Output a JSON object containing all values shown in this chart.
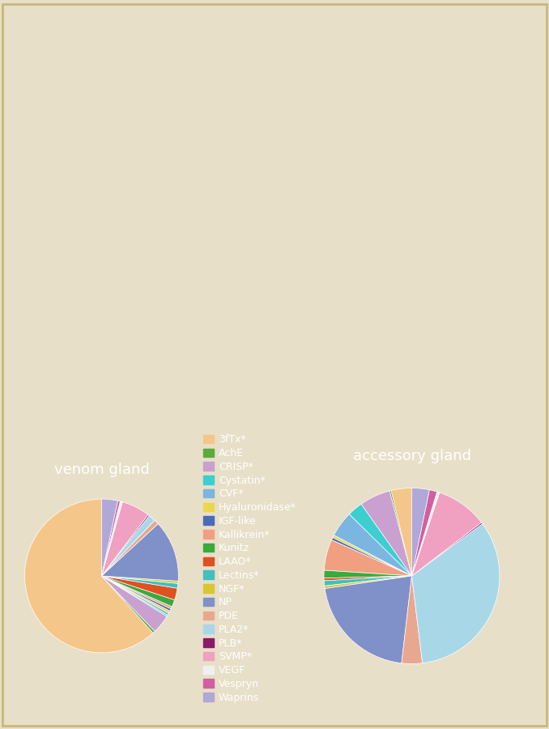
{
  "background_color": "#595959",
  "outer_background": "#e8dfc8",
  "labels": [
    "3fTx*",
    "AchE",
    "CRISP*",
    "Cystatin*",
    "CVF*",
    "Hyaluronidase*",
    "IGF-like",
    "Kallikrein*",
    "Kunitz",
    "LAAO*",
    "Lectins*",
    "NGF*",
    "NP",
    "PDE",
    "PLA2*",
    "PLB*",
    "SVMP*",
    "VEGF",
    "Vespryn",
    "Waprins"
  ],
  "colors": [
    "#f5c68a",
    "#5aaa3c",
    "#c9a0d0",
    "#3dcecf",
    "#7ab6e0",
    "#e8d84a",
    "#4a6cb8",
    "#f0a080",
    "#3aaa3c",
    "#e05020",
    "#40c0c0",
    "#d8c830",
    "#8090c8",
    "#e8a890",
    "#a8d8e8",
    "#8b1a6b",
    "#f0a0c0",
    "#f0f0f0",
    "#d060a0",
    "#b0a8d8"
  ],
  "venom_gland_values": [
    62,
    0.5,
    4,
    0.3,
    0.5,
    0.5,
    0.5,
    0.5,
    1.5,
    2.5,
    1.0,
    0.5,
    13,
    1.0,
    1.5,
    0.3,
    6,
    0.5,
    0.5,
    3.4
  ],
  "accessory_gland_values": [
    4,
    0.3,
    6,
    3,
    5,
    0.5,
    0.5,
    6,
    1.5,
    0.5,
    1.0,
    0.5,
    22,
    4,
    35,
    0.3,
    10,
    0.5,
    1.5,
    3.4
  ],
  "venom_label": "venom gland",
  "accessory_label": "accessory gland",
  "label_fontsize": 13,
  "legend_fontsize": 9
}
